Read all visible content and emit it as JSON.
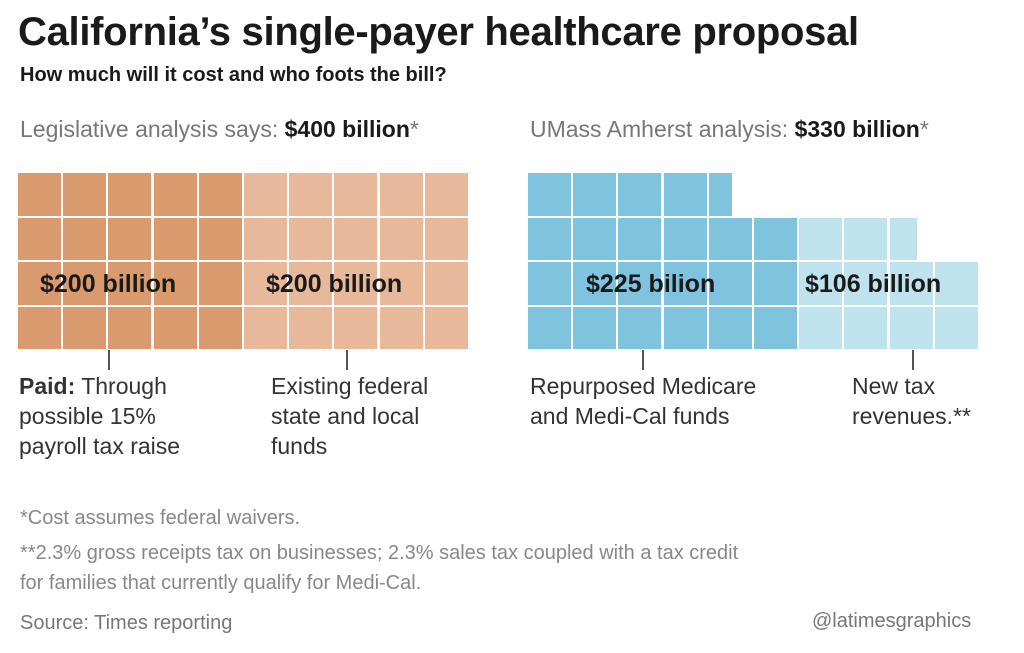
{
  "title": "California’s single-payer healthcare proposal",
  "subtitle": "How much will it cost and who foots the bill?",
  "chart_data": [
    {
      "type": "waffle",
      "header_prefix": "Legislative analysis says: ",
      "header_total": "$400 billion",
      "header_suffix": "*",
      "unit_per_cell": "$10 billion",
      "series": [
        {
          "value": 200,
          "label": "$200 billion",
          "color": "#d99b6e",
          "annotation_bold": "Paid:",
          "annotation": " Through\npossible 15%\npayroll tax raise"
        },
        {
          "value": 200,
          "label": "$200 billion",
          "color": "#e7b899",
          "annotation_bold": "",
          "annotation": "Existing federal\nstate and local\nfunds"
        }
      ]
    },
    {
      "type": "waffle",
      "header_prefix": "UMass Amherst analysis: ",
      "header_total": "$330 billion",
      "header_suffix": "*",
      "unit_per_cell": "$10 billion",
      "series": [
        {
          "value": 225,
          "label": "$225 bilion",
          "color": "#80c3de",
          "annotation_bold": "",
          "annotation": "Repurposed Medicare\nand Medi-Cal funds"
        },
        {
          "value": 106,
          "label": "$106 billion",
          "color": "#bfe2ef",
          "annotation_bold": "",
          "annotation": "New tax\nrevenues.**"
        }
      ]
    }
  ],
  "footnotes": [
    "*Cost assumes federal waivers.",
    "**2.3% gross receipts tax on businesses; 2.3% sales tax coupled with a tax credit",
    "for families that currently qualify for Medi-Cal."
  ],
  "source": "Source: Times reporting",
  "credit": "@latimesgraphics"
}
